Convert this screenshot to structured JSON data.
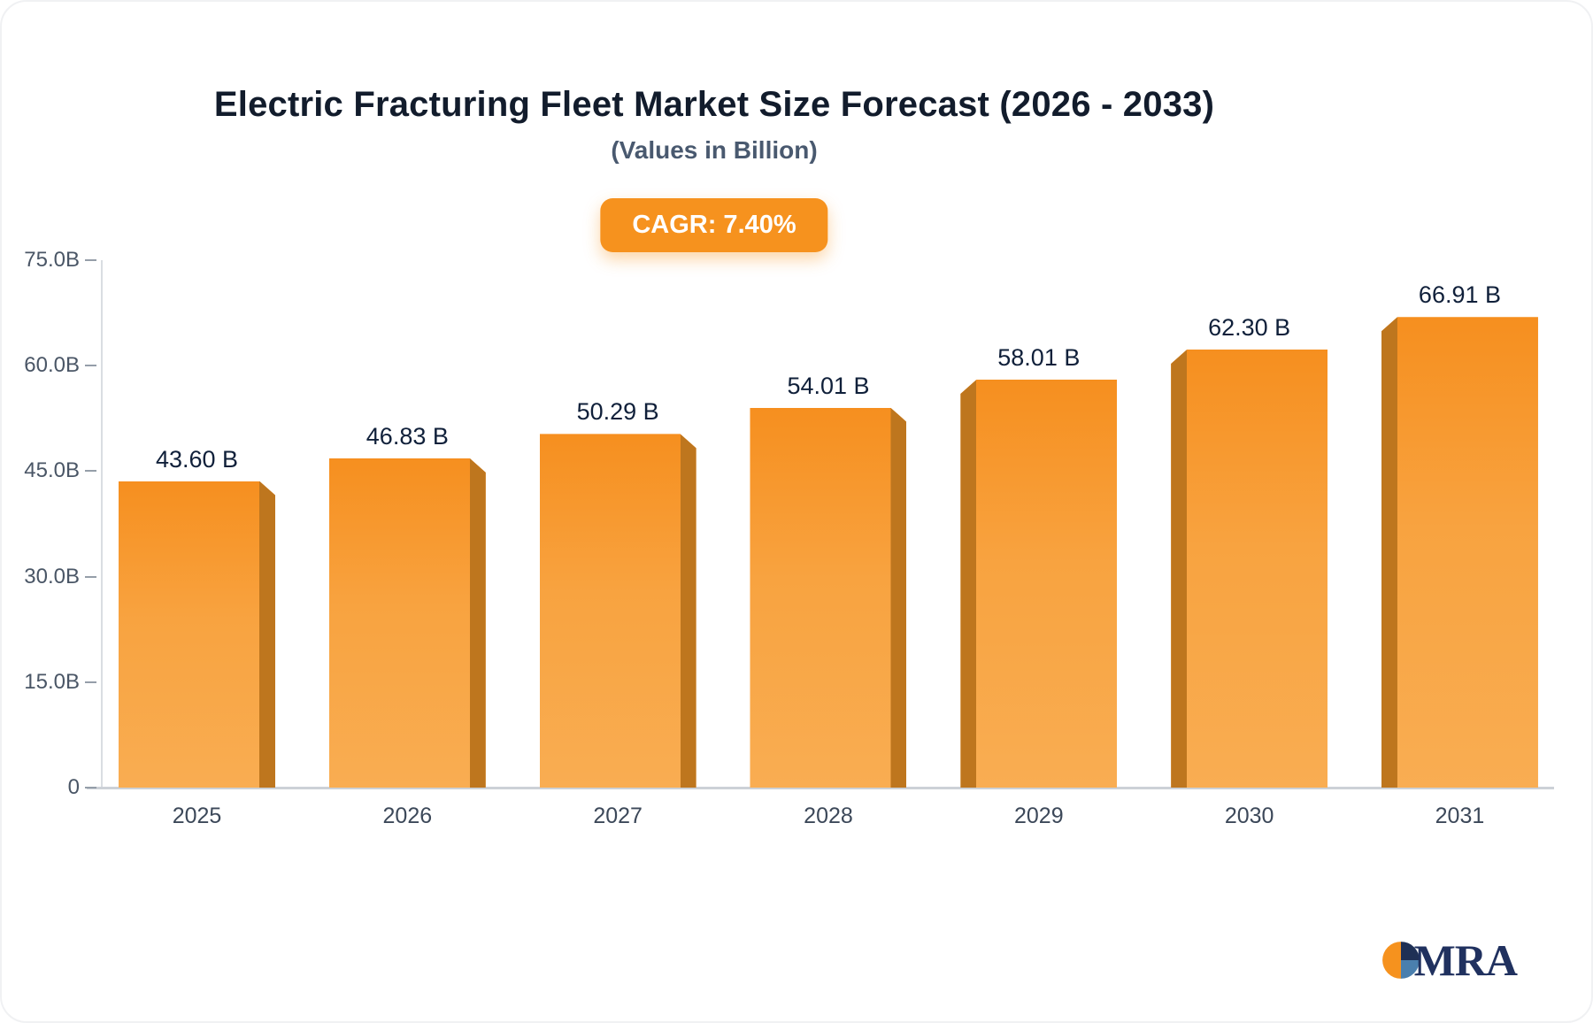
{
  "chart_data": {
    "type": "bar",
    "title": "Electric Fracturing Fleet Market Size Forecast (2026 - 2033)",
    "subtitle": "(Values in Billion)",
    "badge": "CAGR: 7.40%",
    "categories": [
      "2025",
      "2026",
      "2027",
      "2028",
      "2029",
      "2030",
      "2031"
    ],
    "values": [
      43.6,
      46.83,
      50.29,
      54.01,
      58.01,
      62.3,
      66.91
    ],
    "value_labels": [
      "43.60 B",
      "46.83 B",
      "50.29 B",
      "54.01 B",
      "58.01 B",
      "62.30 B",
      "66.91 B"
    ],
    "xlabel": "",
    "ylabel": "",
    "ylim": [
      0,
      75
    ],
    "yticks": [
      {
        "label": "75.0B",
        "value": 75
      },
      {
        "label": "60.0B",
        "value": 60
      },
      {
        "label": "45.0B",
        "value": 45
      },
      {
        "label": "30.0B",
        "value": 30
      },
      {
        "label": "15.0B",
        "value": 15
      },
      {
        "label": "0",
        "value": 0
      }
    ],
    "grid": false,
    "legend": "none"
  },
  "colors": {
    "accent": "#F6921E",
    "bar_top": "#F68F1F",
    "bar_bottom": "#F9AD52",
    "bar_side": "#BE761E",
    "logo_orange": "#F6921E",
    "logo_navy": "#1F3055",
    "logo_blue": "#4A7FAE"
  },
  "logo": {
    "text": "MRA"
  }
}
